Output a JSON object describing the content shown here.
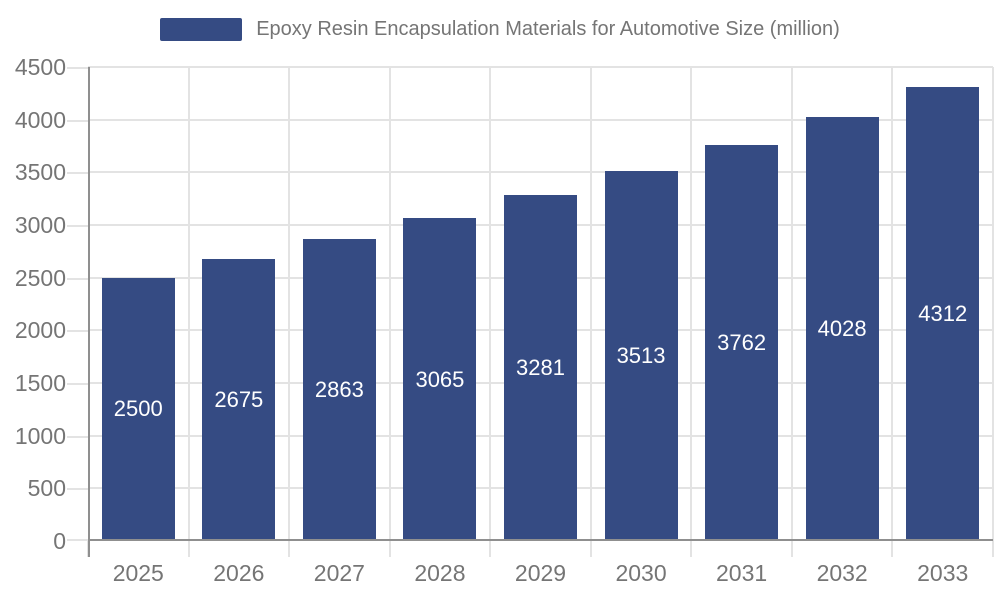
{
  "chart_data": {
    "type": "bar",
    "title": "Epoxy Resin Encapsulation Materials for Automotive Size (million)",
    "legend_position": "top",
    "categories": [
      "2025",
      "2026",
      "2027",
      "2028",
      "2029",
      "2030",
      "2031",
      "2032",
      "2033"
    ],
    "values": [
      2500,
      2675,
      2863,
      3065,
      3281,
      3513,
      3762,
      4028,
      4312
    ],
    "xlabel": "",
    "ylabel": "",
    "ylim": [
      0,
      4500
    ],
    "ytick_step": 500,
    "ytick_labels": [
      "0",
      "500",
      "1000",
      "1500",
      "2000",
      "2500",
      "3000",
      "3500",
      "4000",
      "4500"
    ],
    "grid": true,
    "value_labels_inside_bars": true,
    "colors": {
      "bar": "#354b83",
      "value_label": "#ffffff",
      "axis_text": "#757575",
      "legend_text": "#757575",
      "grid_line": "#e3e3e3",
      "axis_line": "#8f8f8f",
      "background": "#ffffff"
    }
  }
}
